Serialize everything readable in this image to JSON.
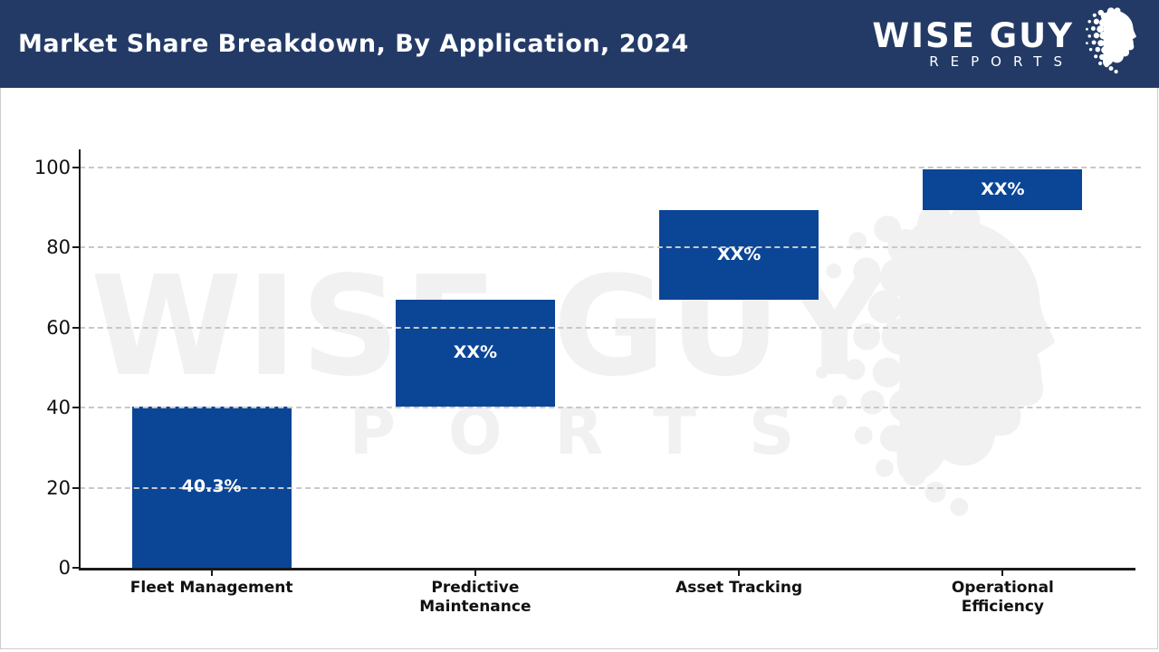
{
  "header": {
    "title": "Market Share Breakdown, By Application, 2024",
    "bg_color": "#233a66",
    "logo": {
      "line1": "WISE GUY",
      "line2": "REPORTS"
    }
  },
  "watermark": {
    "line1": "WISE GUY",
    "line2": "REPORTS"
  },
  "chart_data": {
    "type": "bar",
    "subtype": "waterfall",
    "title": "Market Share Breakdown, By Application, 2024",
    "xlabel": "",
    "ylabel": "",
    "ylim": [
      0,
      100
    ],
    "yticks": [
      0,
      20,
      40,
      60,
      80,
      100
    ],
    "grid": "horizontal dashed, drawn over bars",
    "legend": "none",
    "bar_color": "#0b4596",
    "label_color": "#ffffff",
    "categories": [
      "Fleet Management",
      "Predictive Maintenance",
      "Asset Tracking",
      "Operational Efficiency"
    ],
    "segments": [
      {
        "category": "Fleet Management",
        "category_lines": [
          "Fleet Management"
        ],
        "start": 0,
        "end": 40.3,
        "label": "40.3%"
      },
      {
        "category": "Predictive Maintenance",
        "category_lines": [
          "Predictive",
          "Maintenance"
        ],
        "start": 40.3,
        "end": 67.0,
        "label": "XX%"
      },
      {
        "category": "Asset Tracking",
        "category_lines": [
          "Asset Tracking"
        ],
        "start": 67.0,
        "end": 89.3,
        "label": "XX%"
      },
      {
        "category": "Operational Efficiency",
        "category_lines": [
          "Operational",
          "Efficiency"
        ],
        "start": 89.3,
        "end": 99.5,
        "label": "XX%"
      }
    ]
  }
}
